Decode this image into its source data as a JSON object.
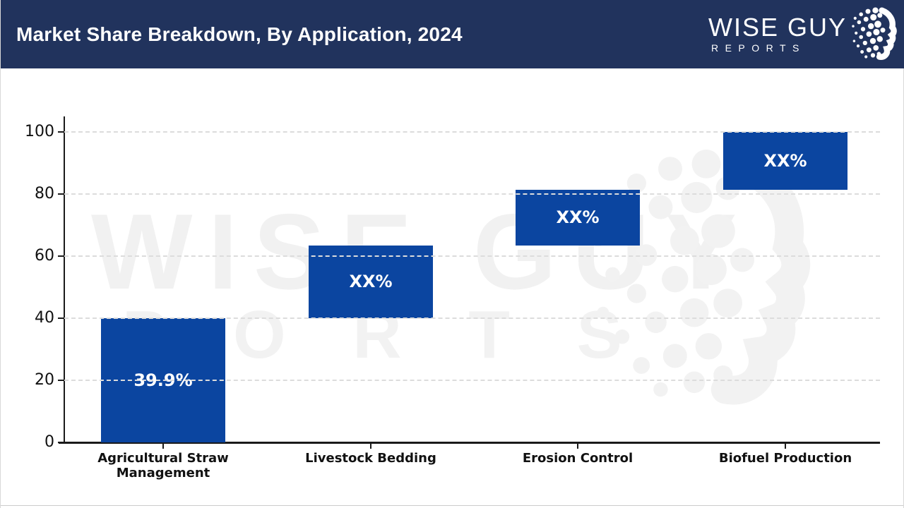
{
  "header": {
    "title": "Market Share Breakdown, By Application, 2024",
    "logo_line1": "WISE GUY",
    "logo_line2": "REPORTS"
  },
  "watermark": {
    "line1": "WISE GUY",
    "line2": "P O R T S"
  },
  "colors": {
    "header_bg": "#21335d",
    "bar": "#0b45a0",
    "axis": "#1a1a1a",
    "grid": "#dcdcdc",
    "watermark": "#f1f1f1",
    "bar_label": "#ffffff",
    "title_text": "#ffffff"
  },
  "chart_data": {
    "type": "bar",
    "variant": "floating-segment-waterfall",
    "title": "Market Share Breakdown, By Application, 2024",
    "categories": [
      "Agricultural Straw Management",
      "Livestock Bedding",
      "Erosion Control",
      "Biofuel Production"
    ],
    "segments": [
      {
        "category": "Agricultural Straw Management",
        "start": 0,
        "end": 39.9,
        "label": "39.9%"
      },
      {
        "category": "Livestock Bedding",
        "start": 40.1,
        "end": 63.4,
        "label": "XX%"
      },
      {
        "category": "Erosion Control",
        "start": 63.5,
        "end": 81.3,
        "label": "XX%"
      },
      {
        "category": "Biofuel Production",
        "start": 81.4,
        "end": 100,
        "label": "XX%"
      }
    ],
    "yticks": [
      0,
      20,
      40,
      60,
      80,
      100
    ],
    "ylim": [
      0,
      104
    ],
    "xlabel": "",
    "ylabel": "",
    "grid": "horizontal-dashed",
    "legend": "none",
    "bar_color": "#0b45a0"
  }
}
